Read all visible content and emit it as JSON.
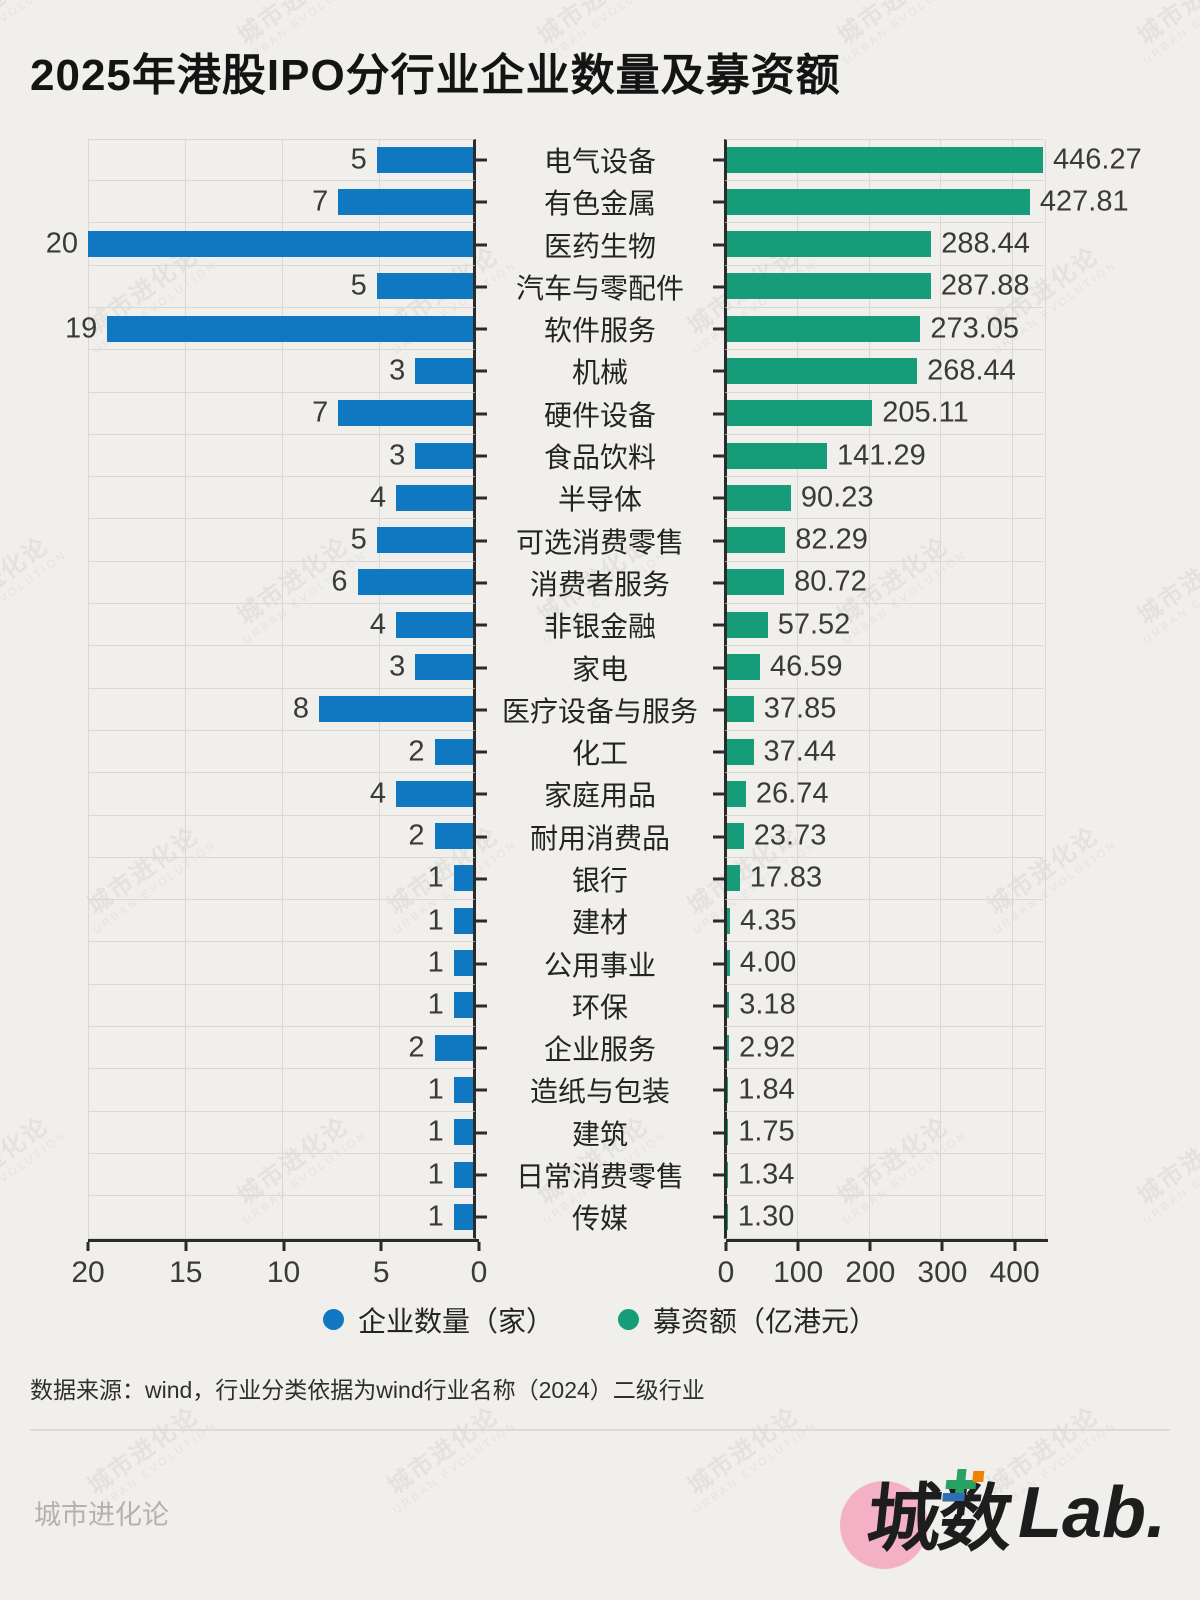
{
  "title": "2025年港股IPO分行业企业数量及募资额",
  "colors": {
    "company_count_bar": "#0f78c1",
    "fundraising_bar": "#169c78",
    "background": "#f0efec",
    "logo_circle_pink": "#f4b0c5"
  },
  "watermark": {
    "line1": "城市进化论",
    "line2": "URBAN EVOLUTION"
  },
  "chart_data": {
    "type": "bar",
    "orientation": "horizontal-diverging",
    "title": "2025年港股IPO分行业企业数量及募资额",
    "categories": [
      "电气设备",
      "有色金属",
      "医药生物",
      "汽车与零配件",
      "软件服务",
      "机械",
      "硬件设备",
      "食品饮料",
      "半导体",
      "可选消费零售",
      "消费者服务",
      "非银金融",
      "家电",
      "医疗设备与服务",
      "化工",
      "家庭用品",
      "耐用消费品",
      "银行",
      "建材",
      "公用事业",
      "环保",
      "企业服务",
      "造纸与包装",
      "建筑",
      "日常消费零售",
      "传媒"
    ],
    "series": [
      {
        "name": "企业数量（家）",
        "side": "left",
        "color": "#0f78c1",
        "values": [
          5,
          7,
          20,
          5,
          19,
          3,
          7,
          3,
          4,
          5,
          6,
          4,
          3,
          8,
          2,
          4,
          2,
          1,
          1,
          1,
          1,
          2,
          1,
          1,
          1,
          1
        ],
        "axis_ticks": [
          20,
          15,
          10,
          5,
          0
        ],
        "xlim": [
          0,
          20
        ],
        "value_decimals": 0
      },
      {
        "name": "募资额（亿港元）",
        "side": "right",
        "color": "#169c78",
        "values": [
          446.27,
          427.81,
          288.44,
          287.88,
          273.05,
          268.44,
          205.11,
          141.29,
          90.23,
          82.29,
          80.72,
          57.52,
          46.59,
          37.85,
          37.44,
          26.74,
          23.73,
          17.83,
          4.35,
          4.0,
          3.18,
          2.92,
          1.84,
          1.75,
          1.34,
          1.3
        ],
        "axis_ticks": [
          0,
          100,
          200,
          300,
          400
        ],
        "xlim": [
          0,
          446.27
        ],
        "value_decimals": 2
      }
    ],
    "grid": true,
    "legend_position": "bottom-center"
  },
  "legend": [
    {
      "label": "企业数量（家）",
      "color": "#0f78c1"
    },
    {
      "label": "募资额（亿港元）",
      "color": "#169c78"
    }
  ],
  "source_note": "数据来源：wind，行业分类依据为wind行业名称（2024）二级行业",
  "footer": {
    "brand": "城市进化论",
    "logo": {
      "cheng": "城",
      "shu": "数",
      "lab": "Lab."
    }
  }
}
